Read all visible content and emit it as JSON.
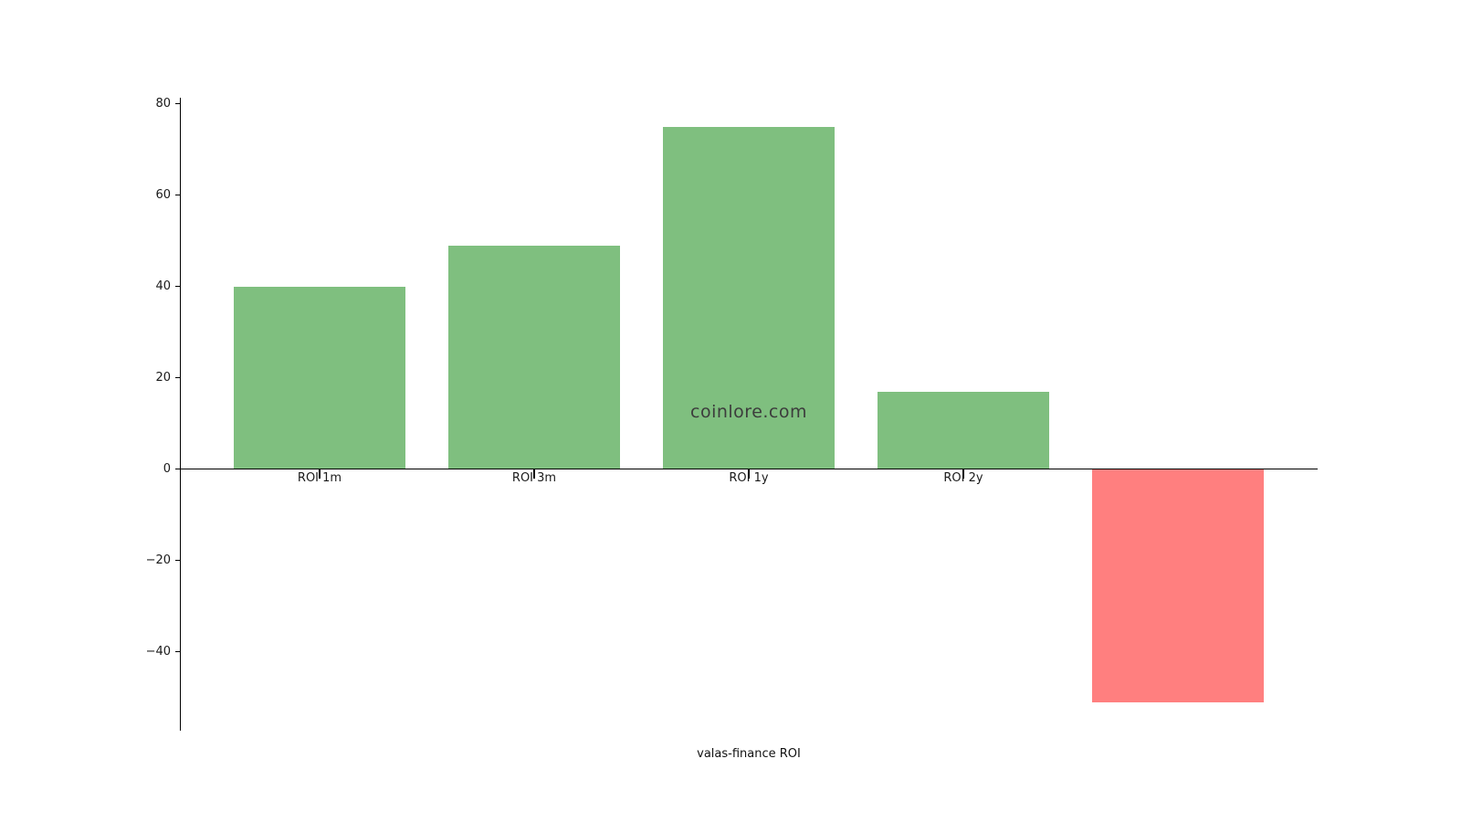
{
  "chart_data": {
    "type": "bar",
    "title": "valas-finance ROI",
    "watermark": "coinlore.com",
    "categories": [
      "ROI 1m",
      "ROI 3m",
      "ROI 1y",
      "ROI 2y",
      ""
    ],
    "values": [
      40,
      49,
      75,
      17,
      -51
    ],
    "series_name": "ROI %",
    "positive_color": "#7fbf7f",
    "negative_color": "#ff7f7f",
    "y_ticks": [
      80,
      60,
      40,
      20,
      0,
      -20,
      -40
    ],
    "ylim": [
      -57,
      81.5
    ],
    "xlabel": "",
    "ylabel": "",
    "grid": false,
    "legend_position": "none",
    "axis_color": "#000000",
    "tick_label_color": "#1a1a1a",
    "watermark_color": "#3c3c3c",
    "background_color": "#ffffff"
  }
}
